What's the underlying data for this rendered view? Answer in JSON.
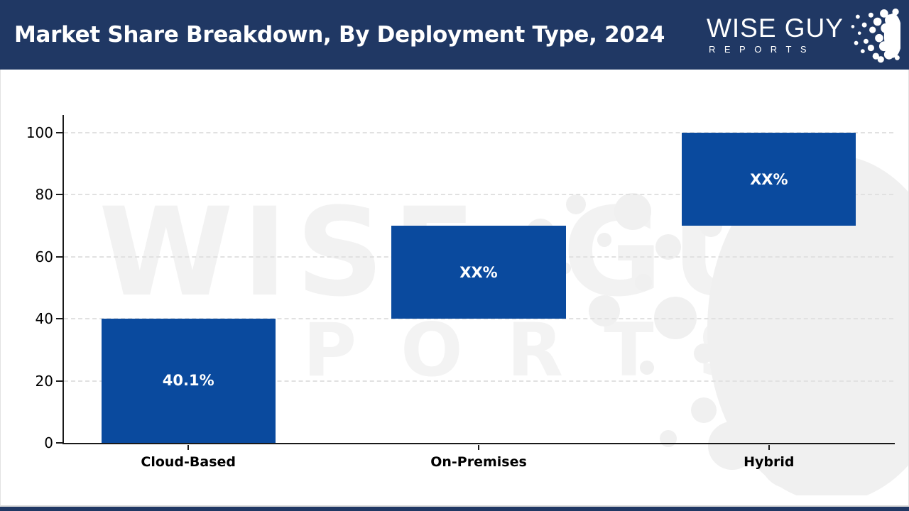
{
  "header": {
    "title": "Market Share Breakdown, By Deployment Type, 2024",
    "logo": {
      "wordmark": "WISE GUY",
      "subtext": "REPORTS"
    },
    "colors": {
      "background": "#203864",
      "text": "#ffffff"
    }
  },
  "watermark": {
    "line1": "WISE GUY",
    "line2": "REPORTS"
  },
  "chart_data": {
    "type": "bar",
    "subtype": "floating-segment-waterfall",
    "title": "Market Share Breakdown, By Deployment Type, 2024",
    "categories": [
      "Cloud-Based",
      "On-Premises",
      "Hybrid"
    ],
    "bars": [
      {
        "category": "Cloud-Based",
        "start": 0,
        "end": 40.1,
        "label": "40.1%"
      },
      {
        "category": "On-Premises",
        "start": 40,
        "end": 70,
        "label": "XX%"
      },
      {
        "category": "Hybrid",
        "start": 70,
        "end": 100,
        "label": "XX%"
      }
    ],
    "xlabel": "",
    "ylabel": "",
    "yticks": [
      0,
      20,
      40,
      60,
      80,
      100
    ],
    "ylim": [
      0,
      105
    ],
    "grid": "horizontal-dashed",
    "legend": "none",
    "bar_color": "#0a4a9e",
    "bar_label_color": "#ffffff",
    "axis_color": "#1a1a1a"
  },
  "footer": {
    "accent_color": "#203864"
  }
}
